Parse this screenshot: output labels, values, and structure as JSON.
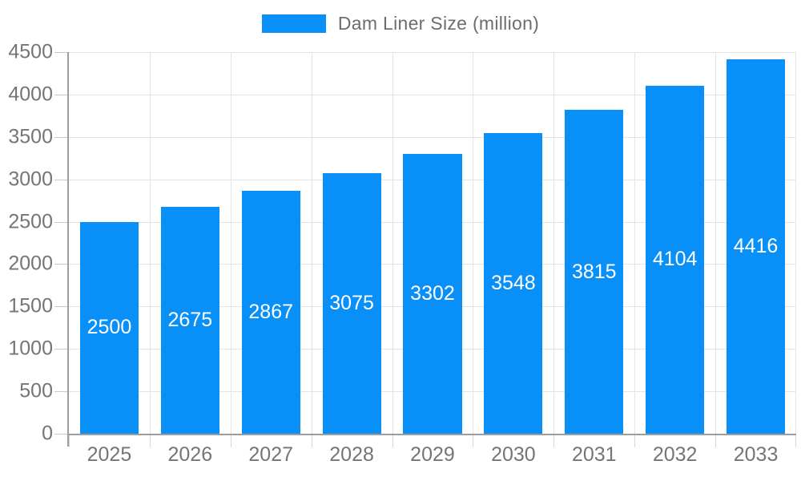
{
  "legend": {
    "label": "Dam Liner Size (million)"
  },
  "chart_data": {
    "type": "bar",
    "title": "Dam Liner Size (million)",
    "categories": [
      "2025",
      "2026",
      "2027",
      "2028",
      "2029",
      "2030",
      "2031",
      "2032",
      "2033"
    ],
    "values": [
      2500,
      2675,
      2867,
      3075,
      3302,
      3548,
      3815,
      4104,
      4416
    ],
    "value_labels": [
      "2500",
      "2675",
      "2867",
      "3075",
      "3302",
      "3548",
      "3815",
      "4104",
      "4416"
    ],
    "xlabel": "",
    "ylabel": "",
    "ylim": [
      0,
      4500
    ],
    "ytick_step": 500,
    "ytick_labels": [
      "0",
      "500",
      "1000",
      "1500",
      "2000",
      "2500",
      "3000",
      "3500",
      "4000",
      "4500"
    ],
    "grid": "on",
    "legend_position": "top-center",
    "bar_label_position": "center-inside",
    "colors": {
      "bar": "#0890f8",
      "bar_label_text": "#ffffff",
      "axis_line": "#9d9d9d",
      "gridline": "#e4e4e4",
      "tick": "#c9c9c9",
      "axis_text": "#757575",
      "legend_text": "#6d6d6d",
      "background": "#ffffff"
    }
  }
}
